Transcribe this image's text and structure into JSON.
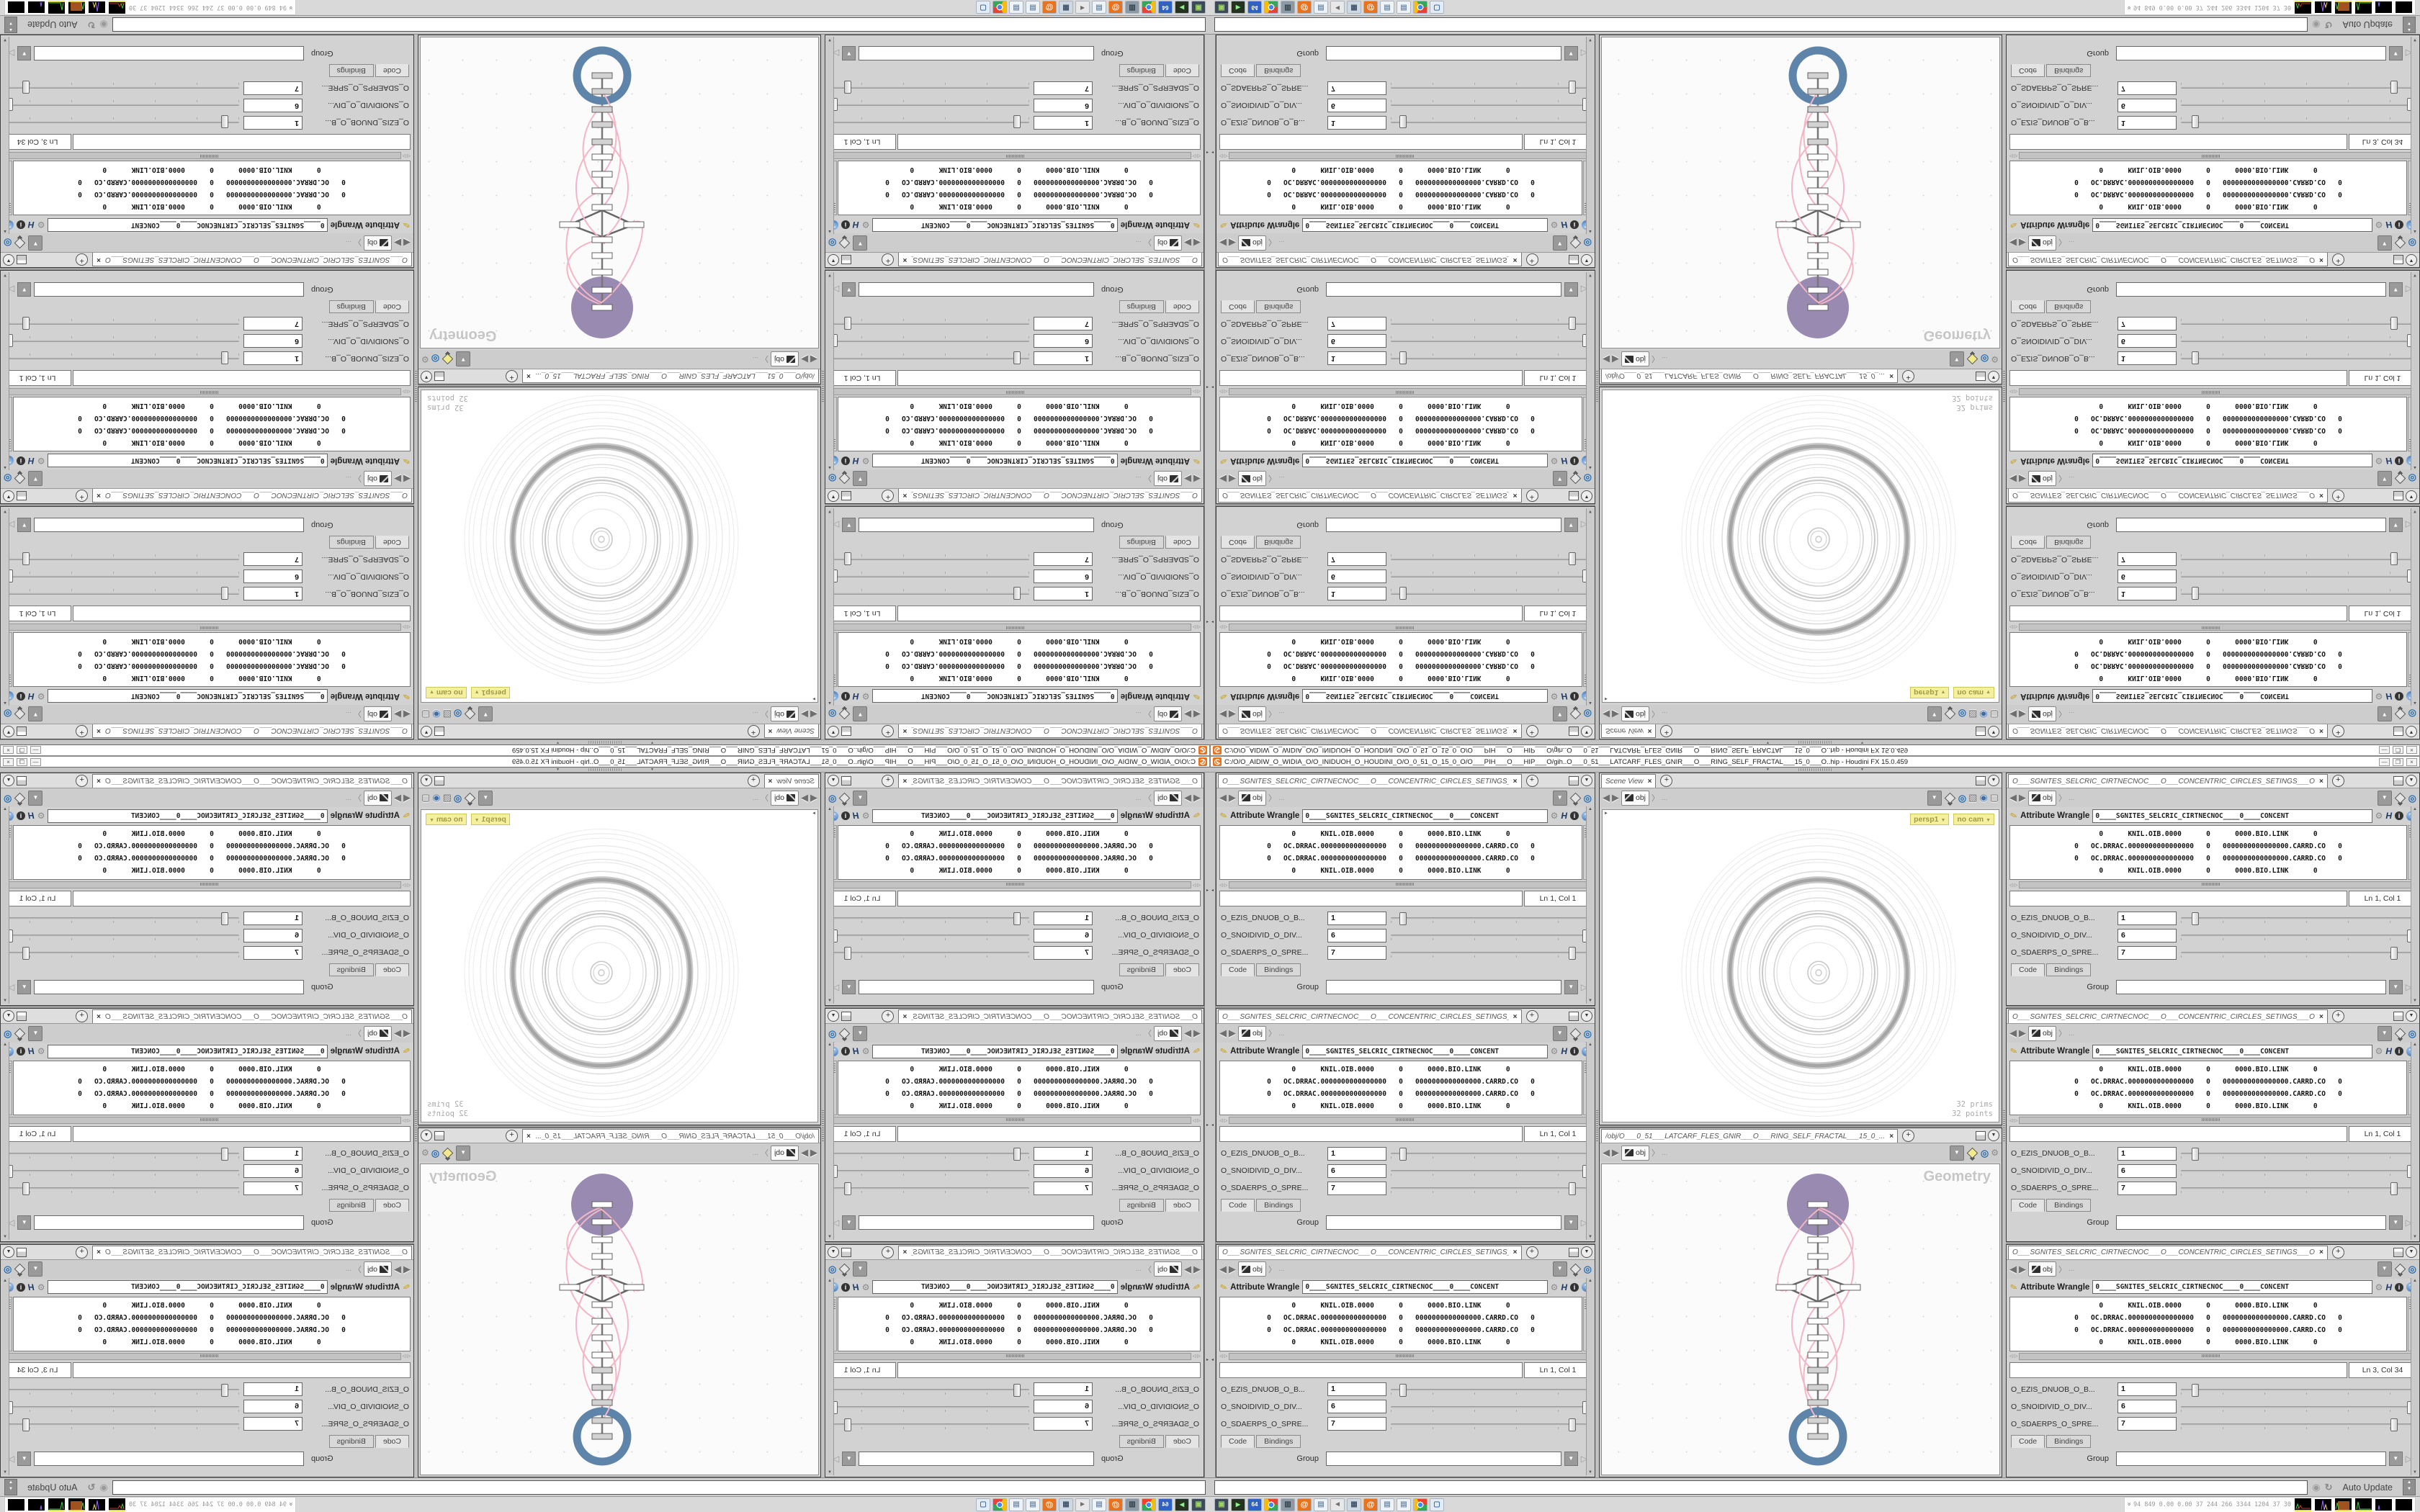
{
  "window": {
    "title": "C:/O/O_AIDIW_O_WIDIA_O/O_INIDUOH_O_HOUDINI_O/O_0_51_O_15_0_O/O___PIH___O___HIP___O/gih..O___0_51___LATCARF_FLES_GNIR___O___RING_SELF_FRACTAL___15_0___O..hip - Houdini FX 15.0.459",
    "controls": {
      "minimize": "—",
      "restore": "❐",
      "close": "×"
    }
  },
  "pane": {
    "tab_title": "O___SGNITES_SELCRIC_CIRTNECNOC___O___CONCENTRIC_CIRCLES_SETINGS___O",
    "close_glyph": "×",
    "plus_glyph": "+",
    "breadcrumb_root": "obj",
    "breadcrumb_more": "...",
    "wrangle_label": "Attribute Wrangle",
    "wrangle_name": "0____SGNITES_SELCRIC_CIRTNECNOC____0____CONCENT",
    "h_glyph": "H",
    "info_glyph": "i",
    "help_glyph": "?",
    "code_lines": [
      "0      KNIL.OIB.0000      0      0000.BIO.LINK      0",
      "0   OC.DRRAC.0000000000000000   0   0000000000000000.CARRD.CO   0",
      "0   OC.DRRAC.0000000000000000   0   0000000000000000.CARRD.CO   0",
      "0      KNIL.OIB.0000      0      0000.BIO.LINK      0"
    ],
    "params": [
      {
        "label": "O_EZIS_DNUOB_O_B...",
        "value": "1",
        "pct": "6%"
      },
      {
        "label": "O_SNOIDIVID_O_DIV...",
        "value": "6",
        "pct": "99%"
      },
      {
        "label": "O_SDAERPS_O_SPRE...",
        "value": "7",
        "pct": "92%"
      }
    ],
    "tab_code": "Code",
    "tab_bindings": "Bindings",
    "group_label": "Group"
  },
  "param_panes": {
    "left": [
      {
        "ln": "Ln 1, Col 1"
      },
      {
        "ln": "Ln 1, Col 1"
      },
      {
        "ln": "Ln 1, Col 1"
      }
    ],
    "right": [
      {
        "ln": "Ln 1, Col 1"
      },
      {
        "ln": "Ln 1, Col 1"
      },
      {
        "ln": "Ln 3, Col 34"
      }
    ]
  },
  "scene_view": {
    "tab": "Scene View",
    "persp_label": "persp1",
    "cam_label": "no cam",
    "stats_prims": "32  prims",
    "stats_points": "32 points"
  },
  "network": {
    "tab": "/obj/O___0_51___LATCARF_FLES_GNIR___O___RING_SELF_FRACTAL___15_0_...",
    "watermark": "Geometry"
  },
  "bottom": {
    "auto_update": "Auto Update"
  },
  "taskbar": {
    "icons": [
      {
        "name": "monitor",
        "glyph": "▣"
      },
      {
        "name": "player",
        "glyph": "▶"
      },
      {
        "name": "floppy64",
        "glyph": "64"
      },
      {
        "name": "chrome",
        "glyph": ""
      },
      {
        "name": "screen",
        "glyph": "▥"
      },
      {
        "name": "houdini",
        "glyph": "@"
      },
      {
        "name": "notepad",
        "glyph": "▤"
      },
      {
        "name": "speaker",
        "glyph": "◄"
      },
      {
        "name": "calculator",
        "glyph": "▦"
      },
      {
        "name": "houdini",
        "glyph": "@"
      },
      {
        "name": "notepad",
        "glyph": "▤"
      },
      {
        "name": "notepad",
        "glyph": "▤"
      },
      {
        "name": "chrome",
        "glyph": ""
      },
      {
        "name": "frame",
        "glyph": "▢"
      }
    ],
    "perf_numbers": [
      "94",
      "849",
      "0.00",
      "0.00",
      "37",
      "244",
      "266",
      "3344",
      "1204",
      "37",
      "30"
    ]
  },
  "colors": {
    "houdini_orange": "#e8731c",
    "highlight_yellow": "#f5f0a0",
    "wire_pink": "#f4b6c6",
    "node_purple": "#988ab1",
    "ring_blue": "#5f84a9"
  }
}
